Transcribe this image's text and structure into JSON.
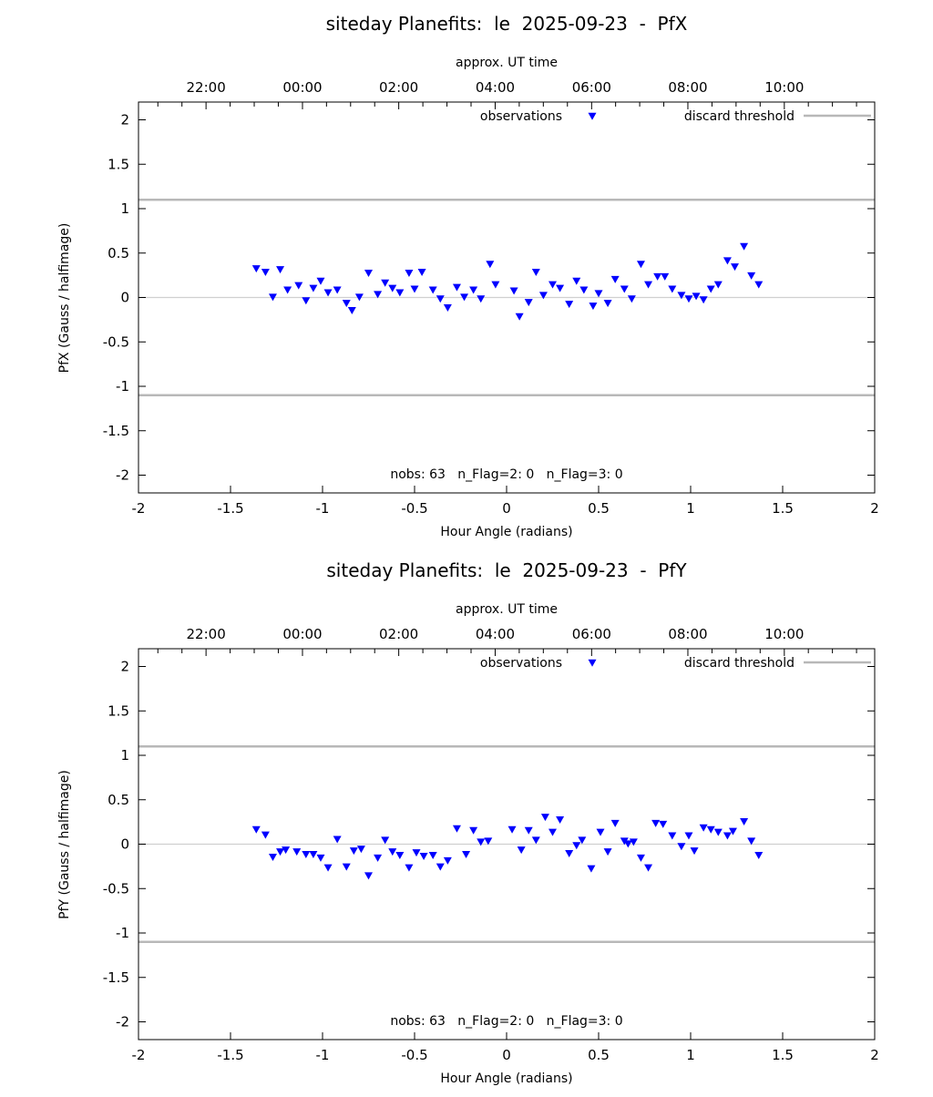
{
  "colors": {
    "background": "#ffffff",
    "marker": "#0000ff",
    "threshold_line": "#b8b8b8",
    "zero_line": "#d0d0d0",
    "border": "#000000",
    "text": "#000000"
  },
  "chart_data": [
    {
      "type": "scatter",
      "title": "siteday Planefits:  le  2025-09-23  -  PfX",
      "top_axis": {
        "label": "approx. UT time",
        "ticks": [
          {
            "label": "22:00",
            "ha": -1.633
          },
          {
            "label": "00:00",
            "ha": -1.109
          },
          {
            "label": "02:00",
            "ha": -0.586
          },
          {
            "label": "04:00",
            "ha": -0.062
          },
          {
            "label": "06:00",
            "ha": 0.462
          },
          {
            "label": "08:00",
            "ha": 0.985
          },
          {
            "label": "10:00",
            "ha": 1.509
          }
        ],
        "minor_step": 0.1309
      },
      "xlabel": "Hour Angle (radians)",
      "xlim": [
        -2,
        2
      ],
      "xticks": [
        -2,
        -1.5,
        -1,
        -0.5,
        0,
        0.5,
        1,
        1.5,
        2
      ],
      "ylabel": "PfX (Gauss / halfimage)",
      "ylim": [
        -2.2,
        2.2
      ],
      "yticks": [
        2,
        1.5,
        1,
        0.5,
        0,
        -0.5,
        -1,
        -1.5,
        -2
      ],
      "legend": [
        {
          "label": "observations",
          "type": "marker"
        },
        {
          "label": "discard threshold",
          "type": "line"
        }
      ],
      "thresholds": [
        1.1,
        -1.1
      ],
      "zero_line": 0,
      "annotation": "nobs: 63   n_Flag=2: 0   n_Flag=3: 0",
      "series": [
        {
          "name": "observations",
          "marker": "triangle-down",
          "color": "#0000ff",
          "points": [
            [
              -1.36,
              0.33
            ],
            [
              -1.31,
              0.29
            ],
            [
              -1.27,
              0.01
            ],
            [
              -1.23,
              0.32
            ],
            [
              -1.19,
              0.09
            ],
            [
              -1.13,
              0.14
            ],
            [
              -1.09,
              -0.03
            ],
            [
              -1.05,
              0.11
            ],
            [
              -1.01,
              0.19
            ],
            [
              -0.97,
              0.06
            ],
            [
              -0.92,
              0.09
            ],
            [
              -0.87,
              -0.06
            ],
            [
              -0.84,
              -0.14
            ],
            [
              -0.8,
              0.01
            ],
            [
              -0.75,
              0.28
            ],
            [
              -0.7,
              0.04
            ],
            [
              -0.66,
              0.17
            ],
            [
              -0.62,
              0.11
            ],
            [
              -0.58,
              0.06
            ],
            [
              -0.53,
              0.28
            ],
            [
              -0.5,
              0.1
            ],
            [
              -0.46,
              0.29
            ],
            [
              -0.4,
              0.09
            ],
            [
              -0.36,
              -0.01
            ],
            [
              -0.32,
              -0.11
            ],
            [
              -0.27,
              0.12
            ],
            [
              -0.23,
              0.01
            ],
            [
              -0.18,
              0.09
            ],
            [
              -0.14,
              -0.01
            ],
            [
              -0.09,
              0.38
            ],
            [
              -0.06,
              0.15
            ],
            [
              0.04,
              0.08
            ],
            [
              0.07,
              -0.21
            ],
            [
              0.12,
              -0.05
            ],
            [
              0.16,
              0.29
            ],
            [
              0.2,
              0.03
            ],
            [
              0.25,
              0.15
            ],
            [
              0.29,
              0.11
            ],
            [
              0.34,
              -0.07
            ],
            [
              0.38,
              0.19
            ],
            [
              0.42,
              0.09
            ],
            [
              0.47,
              -0.09
            ],
            [
              0.5,
              0.05
            ],
            [
              0.55,
              -0.06
            ],
            [
              0.59,
              0.21
            ],
            [
              0.64,
              0.1
            ],
            [
              0.68,
              -0.01
            ],
            [
              0.73,
              0.38
            ],
            [
              0.77,
              0.15
            ],
            [
              0.82,
              0.24
            ],
            [
              0.86,
              0.24
            ],
            [
              0.9,
              0.1
            ],
            [
              0.95,
              0.03
            ],
            [
              0.99,
              -0.01
            ],
            [
              1.03,
              0.02
            ],
            [
              1.07,
              -0.02
            ],
            [
              1.11,
              0.1
            ],
            [
              1.15,
              0.15
            ],
            [
              1.2,
              0.42
            ],
            [
              1.24,
              0.35
            ],
            [
              1.29,
              0.58
            ],
            [
              1.33,
              0.25
            ],
            [
              1.37,
              0.15
            ]
          ]
        }
      ]
    },
    {
      "type": "scatter",
      "title": "siteday Planefits:  le  2025-09-23  -  PfY",
      "top_axis": {
        "label": "approx. UT time",
        "ticks": [
          {
            "label": "22:00",
            "ha": -1.633
          },
          {
            "label": "00:00",
            "ha": -1.109
          },
          {
            "label": "02:00",
            "ha": -0.586
          },
          {
            "label": "04:00",
            "ha": -0.062
          },
          {
            "label": "06:00",
            "ha": 0.462
          },
          {
            "label": "08:00",
            "ha": 0.985
          },
          {
            "label": "10:00",
            "ha": 1.509
          }
        ],
        "minor_step": 0.1309
      },
      "xlabel": "Hour Angle (radians)",
      "xlim": [
        -2,
        2
      ],
      "xticks": [
        -2,
        -1.5,
        -1,
        -0.5,
        0,
        0.5,
        1,
        1.5,
        2
      ],
      "ylabel": "PfY (Gauss / halfimage)",
      "ylim": [
        -2.2,
        2.2
      ],
      "yticks": [
        2,
        1.5,
        1,
        0.5,
        0,
        -0.5,
        -1,
        -1.5,
        -2
      ],
      "legend": [
        {
          "label": "observations",
          "type": "marker"
        },
        {
          "label": "discard threshold",
          "type": "line"
        }
      ],
      "thresholds": [
        1.1,
        -1.1
      ],
      "zero_line": 0,
      "annotation": "nobs: 63   n_Flag=2: 0   n_Flag=3: 0",
      "series": [
        {
          "name": "observations",
          "marker": "triangle-down",
          "color": "#0000ff",
          "points": [
            [
              -1.36,
              0.17
            ],
            [
              -1.31,
              0.11
            ],
            [
              -1.27,
              -0.14
            ],
            [
              -1.23,
              -0.08
            ],
            [
              -1.2,
              -0.06
            ],
            [
              -1.14,
              -0.08
            ],
            [
              -1.09,
              -0.11
            ],
            [
              -1.05,
              -0.11
            ],
            [
              -1.01,
              -0.15
            ],
            [
              -0.97,
              -0.26
            ],
            [
              -0.92,
              0.06
            ],
            [
              -0.87,
              -0.25
            ],
            [
              -0.83,
              -0.07
            ],
            [
              -0.79,
              -0.05
            ],
            [
              -0.75,
              -0.35
            ],
            [
              -0.7,
              -0.15
            ],
            [
              -0.66,
              0.05
            ],
            [
              -0.62,
              -0.08
            ],
            [
              -0.58,
              -0.12
            ],
            [
              -0.53,
              -0.26
            ],
            [
              -0.49,
              -0.09
            ],
            [
              -0.45,
              -0.13
            ],
            [
              -0.4,
              -0.12
            ],
            [
              -0.36,
              -0.25
            ],
            [
              -0.32,
              -0.18
            ],
            [
              -0.27,
              0.18
            ],
            [
              -0.22,
              -0.11
            ],
            [
              -0.18,
              0.16
            ],
            [
              -0.14,
              0.03
            ],
            [
              -0.1,
              0.04
            ],
            [
              0.03,
              0.17
            ],
            [
              0.08,
              -0.06
            ],
            [
              0.12,
              0.16
            ],
            [
              0.16,
              0.05
            ],
            [
              0.21,
              0.31
            ],
            [
              0.25,
              0.14
            ],
            [
              0.29,
              0.28
            ],
            [
              0.34,
              -0.1
            ],
            [
              0.38,
              -0.01
            ],
            [
              0.41,
              0.05
            ],
            [
              0.46,
              -0.27
            ],
            [
              0.51,
              0.14
            ],
            [
              0.55,
              -0.08
            ],
            [
              0.59,
              0.24
            ],
            [
              0.64,
              0.04
            ],
            [
              0.66,
              0.01
            ],
            [
              0.69,
              0.03
            ],
            [
              0.73,
              -0.15
            ],
            [
              0.77,
              -0.26
            ],
            [
              0.81,
              0.24
            ],
            [
              0.85,
              0.23
            ],
            [
              0.9,
              0.1
            ],
            [
              0.95,
              -0.02
            ],
            [
              0.99,
              0.1
            ],
            [
              1.02,
              -0.07
            ],
            [
              1.07,
              0.19
            ],
            [
              1.11,
              0.17
            ],
            [
              1.15,
              0.14
            ],
            [
              1.2,
              0.1
            ],
            [
              1.23,
              0.15
            ],
            [
              1.29,
              0.26
            ],
            [
              1.33,
              0.04
            ],
            [
              1.37,
              -0.12
            ]
          ]
        }
      ]
    }
  ]
}
